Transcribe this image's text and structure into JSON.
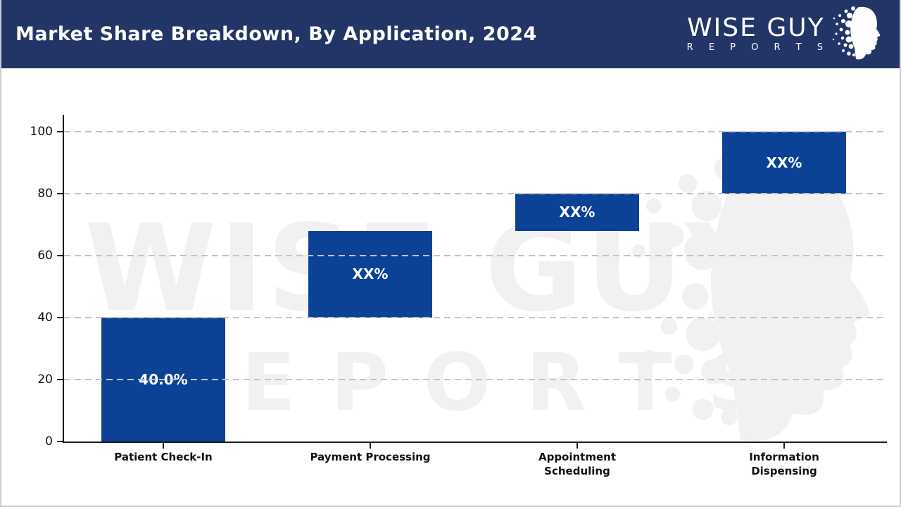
{
  "header": {
    "logo": {
      "main": "WISE GUY",
      "sub": "R E P O R T S",
      "face_icon": "dotted-head-profile"
    },
    "background_color": "#223566"
  },
  "watermark": {
    "line1": "WISE GUY",
    "line2": "REPORTS",
    "face_icon": "dotted-head-profile",
    "color": "#f1f1f3"
  },
  "chart_data": {
    "type": "bar",
    "subtype": "waterfall",
    "title": "Market Share Breakdown, By Application, 2024",
    "categories": [
      "Patient Check-In",
      "Payment Processing",
      "Appointment Scheduling",
      "Information Dispensing"
    ],
    "series": [
      {
        "name": "Market Share",
        "segments": [
          {
            "category": "Patient Check-In",
            "start": 0,
            "end": 40,
            "value": 40,
            "label": "40.0%"
          },
          {
            "category": "Payment Processing",
            "start": 40,
            "end": 68,
            "value": 28,
            "label": "XX%"
          },
          {
            "category": "Appointment Scheduling",
            "start": 68,
            "end": 80,
            "value": 12,
            "label": "XX%"
          },
          {
            "category": "Information Dispensing",
            "start": 80,
            "end": 100,
            "value": 20,
            "label": "XX%"
          }
        ]
      }
    ],
    "xlabel": "",
    "ylabel": "",
    "ylim": [
      0,
      100
    ],
    "yticks": [
      0,
      20,
      40,
      60,
      80,
      100
    ],
    "grid": "horizontal-dashed",
    "legend": "none",
    "bar_color": "#0b4296",
    "bar_label_color": "#ffffff"
  }
}
